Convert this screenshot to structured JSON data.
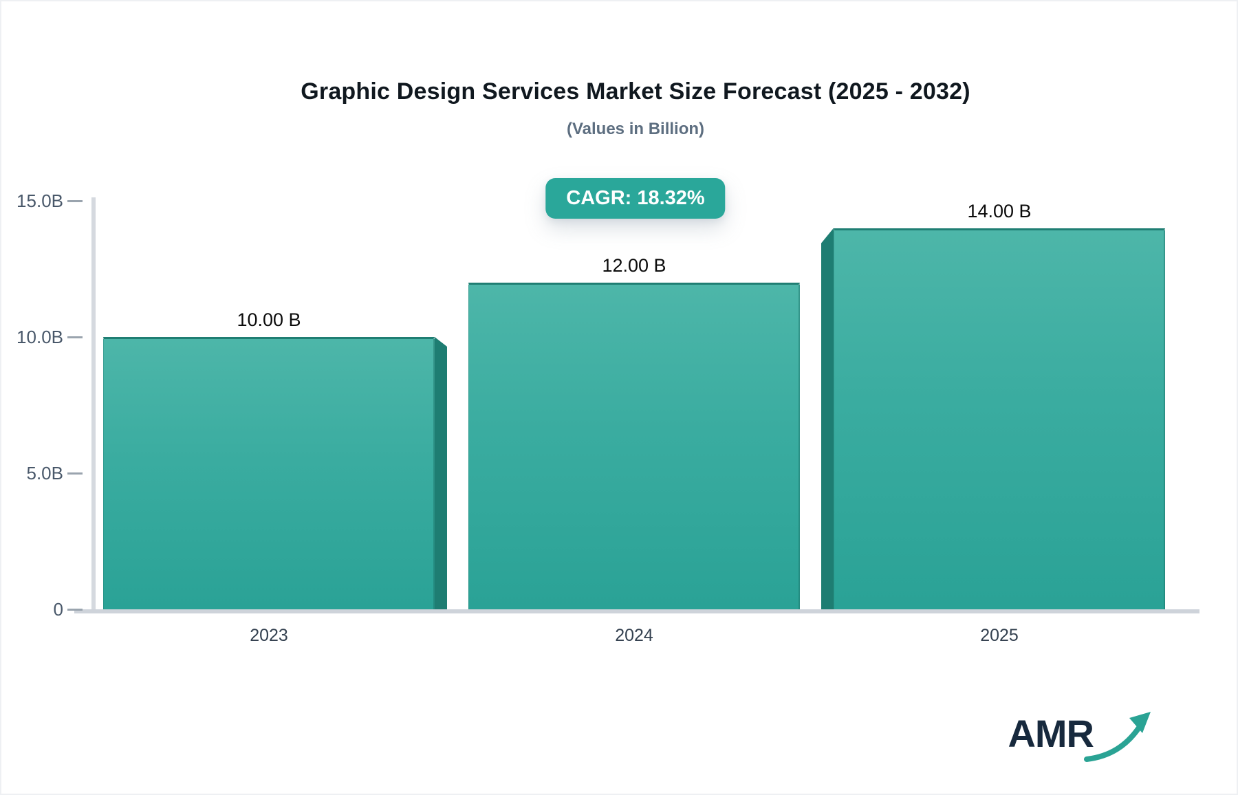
{
  "page": {
    "title": "Graphic Design Services Market Size Forecast (2025 - 2032)",
    "subtitle": "(Values in Billion)",
    "cagr_badge": "CAGR: 18.32%",
    "logo_text": "AMR"
  },
  "colors": {
    "bar_gradient_top": "#4db6a9",
    "bar_gradient_bottom": "#2aa296",
    "bar_side_face": "#1e7d72",
    "badge_background": "#2aa79a",
    "badge_text": "#ffffff",
    "axis_line": "#d5d9df",
    "logo_navy": "#17293d",
    "logo_arrow_teal": "#2aa394"
  },
  "chart_data": {
    "type": "bar",
    "title": "Graphic Design Services Market Size Forecast (2025 - 2032)",
    "subtitle": "(Values in Billion)",
    "annotation": "CAGR: 18.32%",
    "categories": [
      "2023",
      "2024",
      "2025"
    ],
    "values": [
      10.0,
      12.0,
      14.0
    ],
    "value_labels": [
      "10.00 B",
      "12.00 B",
      "14.00 B"
    ],
    "xlabel": "",
    "ylabel": "",
    "ylim": [
      0,
      15
    ],
    "yticks": [
      {
        "value": 0,
        "label": "0"
      },
      {
        "value": 5,
        "label": "5.0B"
      },
      {
        "value": 10,
        "label": "10.0B"
      },
      {
        "value": 15,
        "label": "15.0B"
      }
    ],
    "grid": false,
    "legend": "none",
    "bar_color": "teal-gradient",
    "effect": "3d-side-slab"
  }
}
